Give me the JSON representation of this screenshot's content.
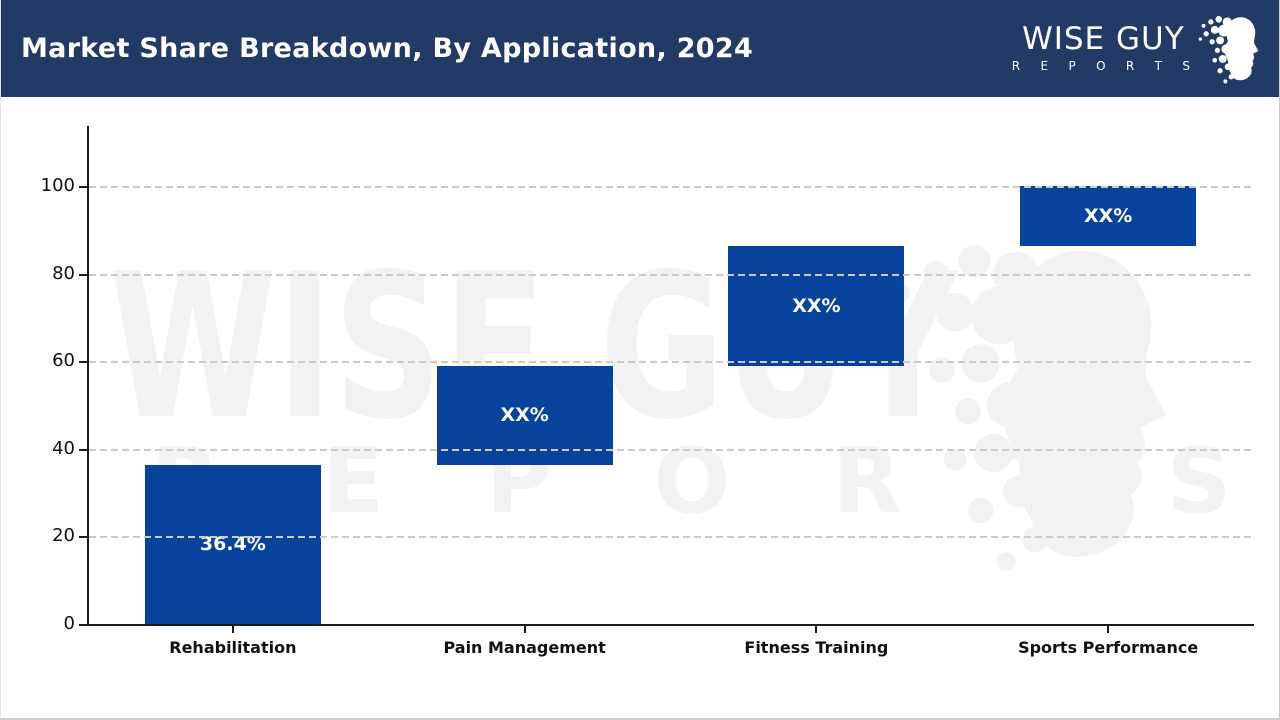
{
  "header": {
    "title": "Market Share Breakdown, By Application, 2024",
    "logo": {
      "line1": "WISE GUY",
      "line2": "REPORTS"
    }
  },
  "watermark": {
    "line1": "WISE GUY",
    "line2": "REPORTS"
  },
  "colors": {
    "header_bg": "#213a66",
    "bar_blue": "#07439c",
    "grid_gray": "#cbcbcb",
    "watermark_gray": "#f2f2f4"
  },
  "chart_data": {
    "type": "bar",
    "variant": "waterfall",
    "title": "Market Share Breakdown, By Application, 2024",
    "categories": [
      "Rehabilitation",
      "Pain Management",
      "Fitness Training",
      "Sports Performance"
    ],
    "segments": [
      {
        "category": "Rehabilitation",
        "from": 0,
        "to": 36.4,
        "label": "36.4%"
      },
      {
        "category": "Pain Management",
        "from": 36.4,
        "to": 59.0,
        "label": "XX%"
      },
      {
        "category": "Fitness Training",
        "from": 59.0,
        "to": 86.4,
        "label": "XX%"
      },
      {
        "category": "Sports Performance",
        "from": 86.4,
        "to": 100.0,
        "label": "XX%"
      }
    ],
    "yticks": [
      0,
      20,
      40,
      60,
      80,
      100
    ],
    "ylim": [
      0,
      105
    ],
    "xlabel": "",
    "ylabel": "",
    "grid": "horizontal-dashed",
    "legend": "none",
    "bar_color": "#07439c",
    "bar_label_color": "#ffffff"
  }
}
